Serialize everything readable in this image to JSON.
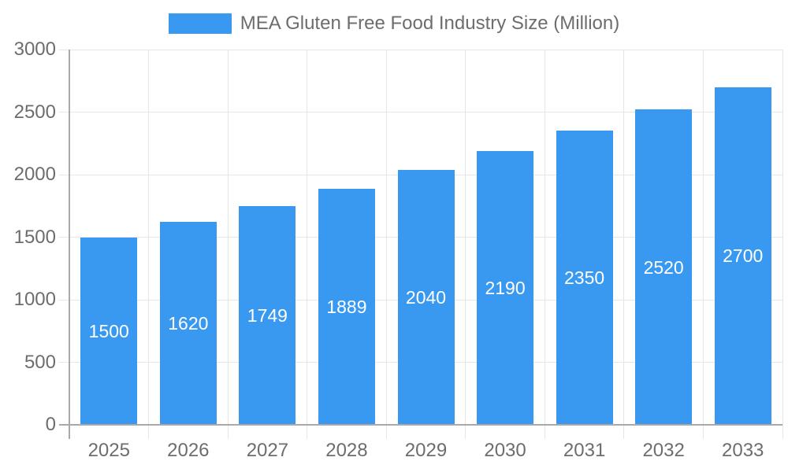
{
  "chart_data": {
    "type": "bar",
    "title": "MEA Gluten Free Food Industry Size (Million)",
    "legend": {
      "position": "top",
      "entries": [
        "MEA Gluten Free Food Industry Size (Million)"
      ]
    },
    "categories": [
      "2025",
      "2026",
      "2027",
      "2028",
      "2029",
      "2030",
      "2031",
      "2032",
      "2033"
    ],
    "series": [
      {
        "name": "MEA Gluten Free Food Industry Size (Million)",
        "values": [
          1500,
          1620,
          1749,
          1889,
          2040,
          2190,
          2350,
          2520,
          2700
        ]
      }
    ],
    "xlabel": "",
    "ylabel": "",
    "ylim": [
      0,
      3000
    ],
    "yticks": [
      0,
      500,
      1000,
      1500,
      2000,
      2500,
      3000
    ],
    "grid": true,
    "colors": {
      "bar": "#3999f0",
      "grid_line": "#e6e6e6",
      "axis_line": "#a9a9a9",
      "axis_label": "#6d6d6d",
      "value_label": "#ffffff",
      "background": "#ffffff"
    }
  }
}
